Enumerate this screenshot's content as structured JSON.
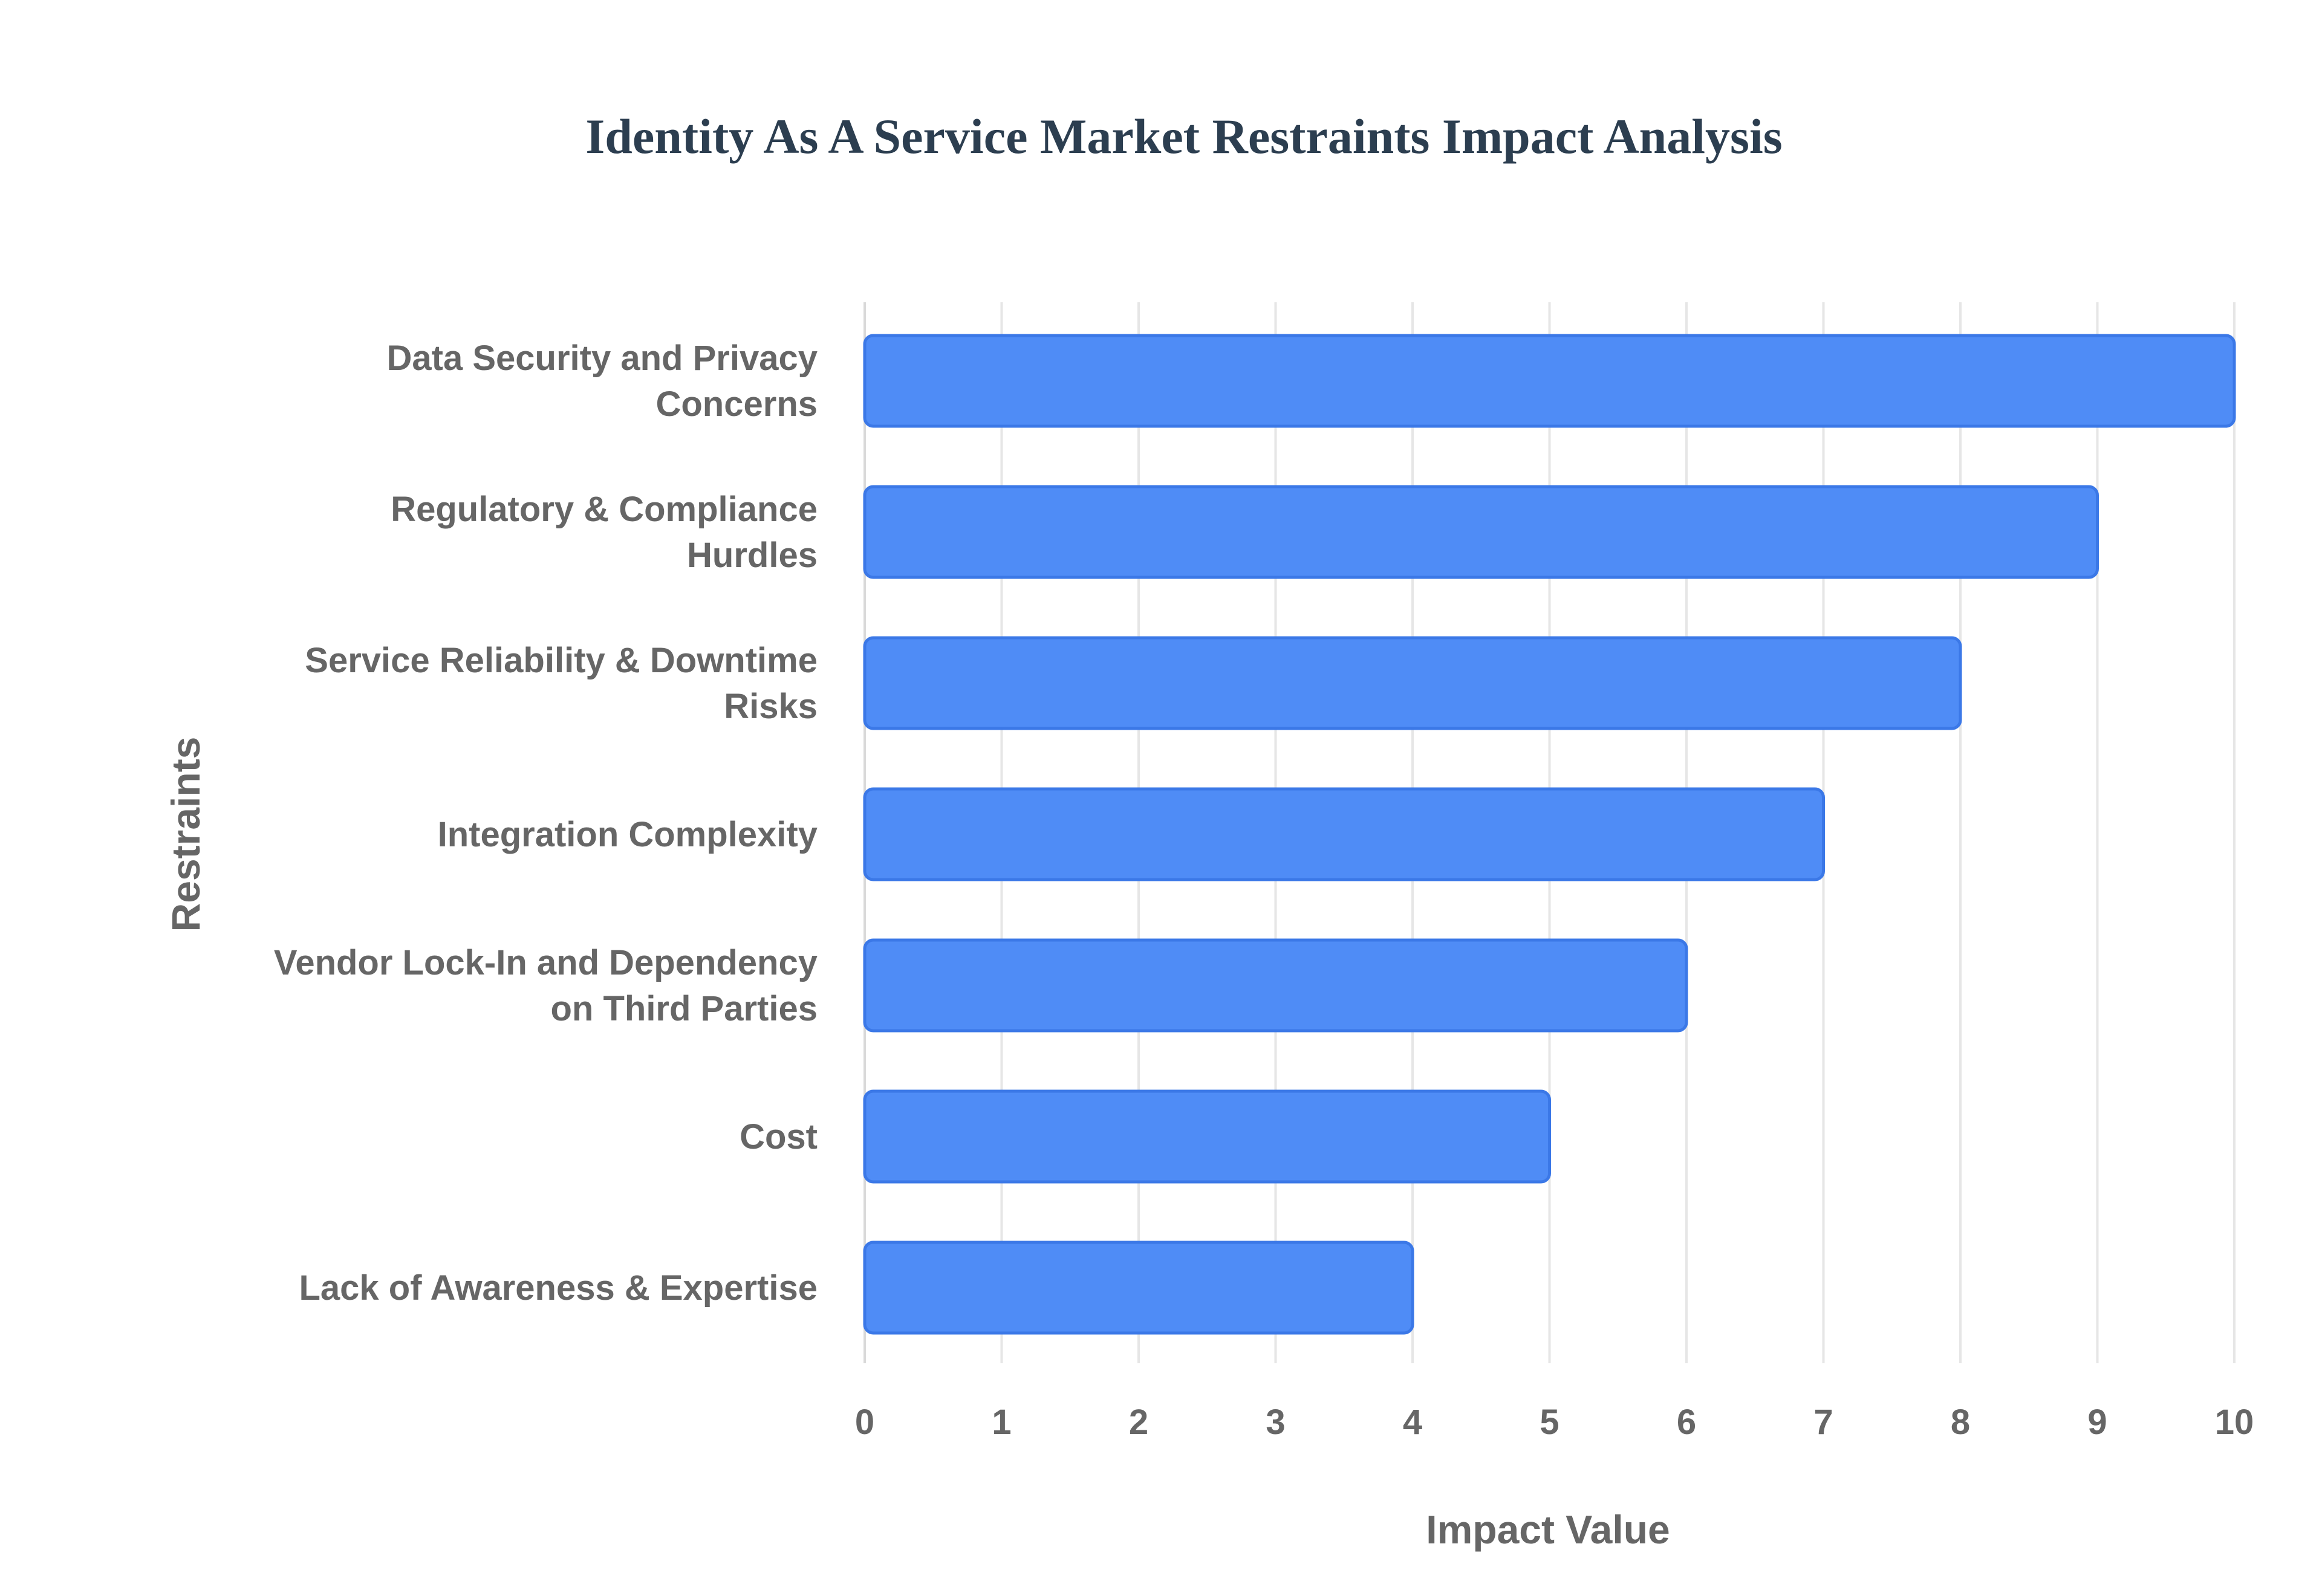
{
  "chart_data": {
    "type": "bar",
    "orientation": "horizontal",
    "title": "Identity As A Service Market Restraints Impact Analysis",
    "xlabel": "Impact Value",
    "ylabel": "Restraints",
    "categories": [
      [
        "Data Security and Privacy",
        "Concerns"
      ],
      [
        "Regulatory & Compliance",
        "Hurdles"
      ],
      [
        "Service Reliability & Downtime",
        "Risks"
      ],
      [
        "Integration Complexity"
      ],
      [
        "Vendor Lock-In and Dependency",
        "on Third Parties"
      ],
      [
        "Cost"
      ],
      [
        "Lack of Awareness & Expertise"
      ]
    ],
    "values": [
      10,
      9,
      8,
      7,
      6,
      5,
      4
    ],
    "xlim": [
      0,
      10
    ],
    "xticks": [
      "0",
      "1",
      "2",
      "3",
      "4",
      "5",
      "6",
      "7",
      "8",
      "9",
      "10"
    ],
    "grid": true,
    "legend": "none",
    "colors": {
      "bar_fill": "#4f8cf6",
      "bar_stroke": "#3b78e7"
    }
  }
}
